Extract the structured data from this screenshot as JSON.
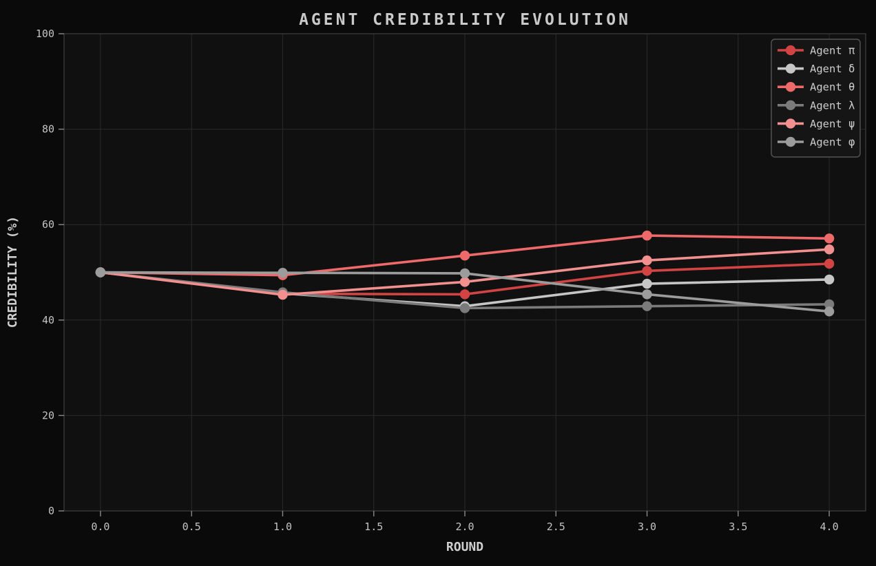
{
  "window": {
    "description": "dark-themed line chart of agent credibility over debate rounds"
  },
  "colors": {
    "figure_background": "#0a0a0a",
    "axes_background": "#101010",
    "grid": "#2a2a2a",
    "spine": "#3d3d3d",
    "tick": "#8a8a8a",
    "title": "#dc4646",
    "axis_label": "#cfcfcf",
    "tick_label": "#c4c4c4",
    "legend_background": "#151515",
    "legend_border": "#555555",
    "legend_text": "#cccccc"
  },
  "chart_data": {
    "type": "line",
    "title": "AGENT CREDIBILITY EVOLUTION",
    "xlabel": "ROUND",
    "ylabel": "CREDIBILITY (%)",
    "x": [
      0,
      1,
      2,
      3,
      4
    ],
    "xlim": [
      -0.2,
      4.2
    ],
    "ylim": [
      0,
      100
    ],
    "xtick_values": [
      0.0,
      0.5,
      1.0,
      1.5,
      2.0,
      2.5,
      3.0,
      3.5,
      4.0
    ],
    "xtick_labels": [
      "0.0",
      "0.5",
      "1.0",
      "1.5",
      "2.0",
      "2.5",
      "3.0",
      "3.5",
      "4.0"
    ],
    "ytick_values": [
      0,
      20,
      40,
      60,
      80,
      100
    ],
    "ytick_labels": [
      "0",
      "20",
      "40",
      "60",
      "80",
      "100"
    ],
    "grid": true,
    "legend_position": "upper right",
    "marker": "circle",
    "series": [
      {
        "name": "Agent π",
        "slug": "agent-pi",
        "color": "#d24444",
        "values": [
          50,
          45.5,
          45.4,
          50.3,
          51.8
        ]
      },
      {
        "name": "Agent δ",
        "slug": "agent-delta",
        "color": "#c6c6c6",
        "values": [
          50,
          45.6,
          42.9,
          47.6,
          48.5
        ]
      },
      {
        "name": "Agent θ",
        "slug": "agent-theta",
        "color": "#ee6a6a",
        "values": [
          50,
          49.4,
          53.5,
          57.7,
          57.1
        ]
      },
      {
        "name": "Agent λ",
        "slug": "agent-lambda",
        "color": "#7b7b7b",
        "values": [
          50,
          45.8,
          42.5,
          42.9,
          43.3
        ]
      },
      {
        "name": "Agent ψ",
        "slug": "agent-psi",
        "color": "#f29090",
        "values": [
          50,
          45.3,
          48.0,
          52.5,
          54.8
        ]
      },
      {
        "name": "Agent φ",
        "slug": "agent-phi",
        "color": "#9c9c9c",
        "values": [
          50,
          49.9,
          49.8,
          45.4,
          41.8
        ]
      }
    ]
  }
}
